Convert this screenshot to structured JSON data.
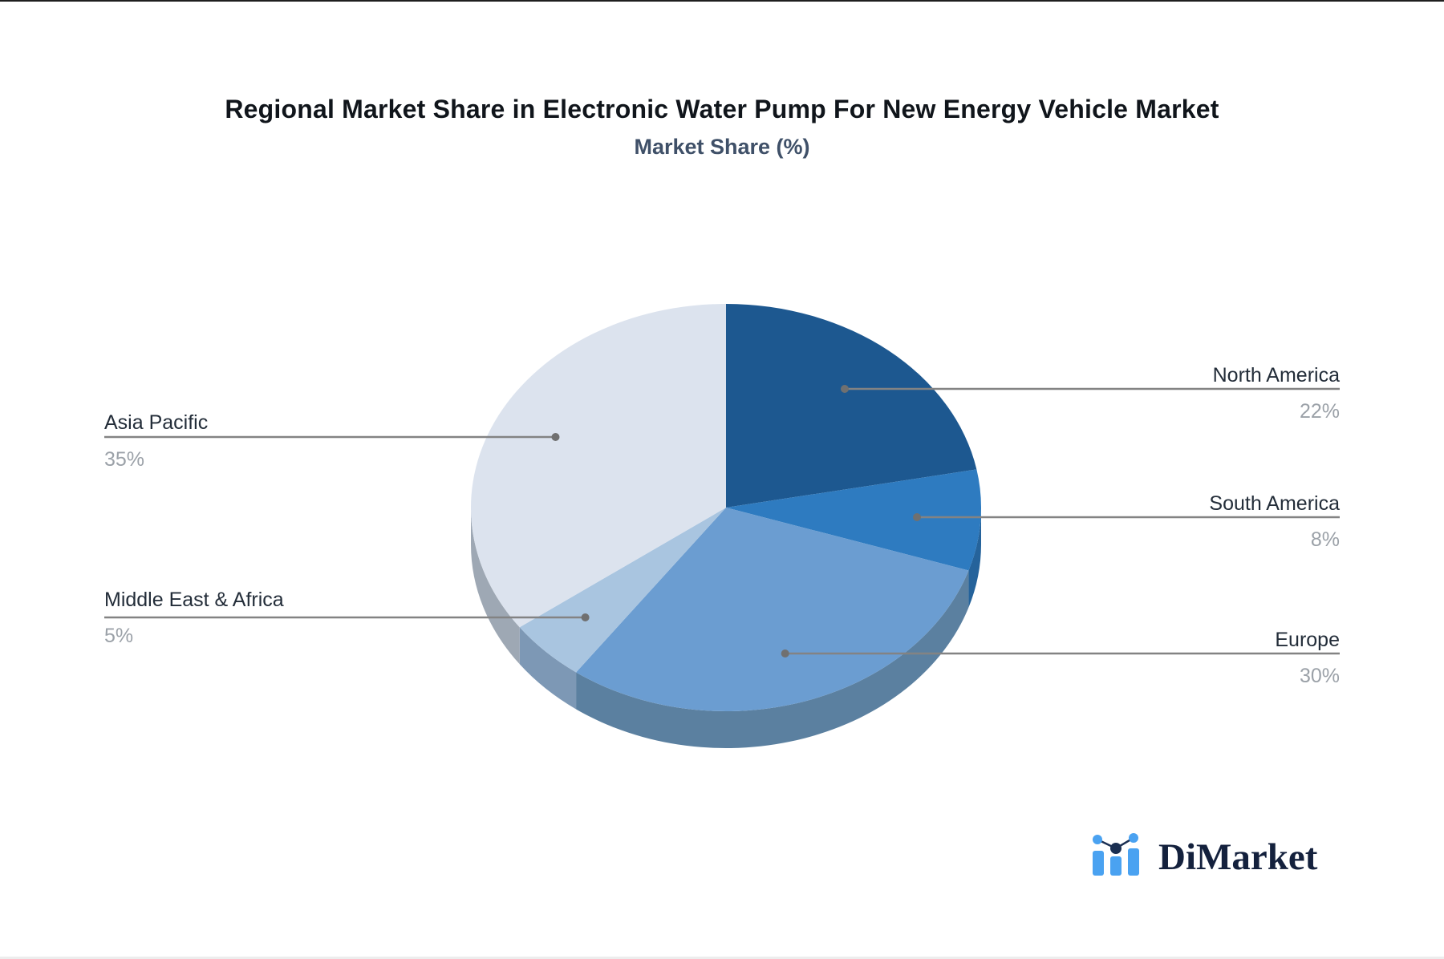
{
  "header": {
    "title": "Regional Market Share in Electronic Water Pump For New Energy Vehicle Market",
    "subtitle": "Market Share (%)",
    "title_color": "#10151b",
    "subtitle_color": "#3f5068"
  },
  "chart_data": {
    "type": "pie",
    "style": "3d",
    "title": "Market Share (%)",
    "unit": "%",
    "direction": "clockwise",
    "start_angle_deg": 0,
    "label_position": "outside-with-leader-lines",
    "legend": "none",
    "leader_line_color": "#838383",
    "leader_dot_color": "#707070",
    "label_name_color": "#232d39",
    "label_value_color": "#9ba1a8",
    "slices": [
      {
        "label": "North America",
        "value": 22,
        "display": "22%",
        "color": "#1d5890",
        "side_color": "#17466f",
        "side": "right"
      },
      {
        "label": "South America",
        "value": 8,
        "display": "8%",
        "color": "#2e7bc0",
        "side_color": "#25639b",
        "side": "right"
      },
      {
        "label": "Europe",
        "value": 30,
        "display": "30%",
        "color": "#6b9dd1",
        "side_color": "#5b80a0",
        "side": "right"
      },
      {
        "label": "Middle East & Africa",
        "value": 5,
        "display": "5%",
        "color": "#a9c5e0",
        "side_color": "#7d98b5",
        "side": "left"
      },
      {
        "label": "Asia Pacific",
        "value": 35,
        "display": "35%",
        "color": "#dce3ee",
        "side_color": "#9ea8b4",
        "side": "left"
      }
    ]
  },
  "logo": {
    "text": "DiMarket",
    "text_color": "#14213d",
    "bar_color": "#4aa2f1",
    "dot_color": "#1b2f52"
  }
}
